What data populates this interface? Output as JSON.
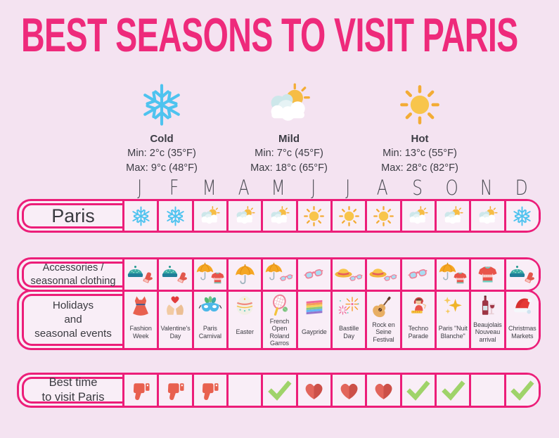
{
  "title": "BEST SEASONS TO VISIT PARIS",
  "colors": {
    "accent_pink": "#ec1e79",
    "title_pink": "#ee2a7b",
    "background": "#f4e3f1",
    "cell_background": "#f9eef7",
    "text_dark": "#3c3c44",
    "check_green": "#9fd36a",
    "heart_red": "#df5b51",
    "thumb_red": "#e8604f",
    "snowflake_blue": "#4ec3ef",
    "sun_yellow": "#f8c54b"
  },
  "legend": [
    {
      "icon": "snowflake-icon",
      "name": "Cold",
      "min": "Min: 2°c (35°F)",
      "max": "Max: 9°c (48°F)"
    },
    {
      "icon": "sun-behind-cloud-icon",
      "name": "Mild",
      "min": "Min: 7°c (45°F)",
      "max": "Max: 18°c (65°F)"
    },
    {
      "icon": "sun-icon",
      "name": "Hot",
      "min": "Min: 13°c (55°F)",
      "max": "Max: 28°c (82°F)"
    }
  ],
  "months": [
    "J",
    "F",
    "M",
    "A",
    "M",
    "J",
    "J",
    "A",
    "S",
    "O",
    "N",
    "D"
  ],
  "table": {
    "weather_row": {
      "label_lines": [
        "Paris"
      ],
      "cells": [
        {
          "icons": [
            "snowflake"
          ]
        },
        {
          "icons": [
            "snowflake"
          ]
        },
        {
          "icons": [
            "suncloud"
          ]
        },
        {
          "icons": [
            "suncloud"
          ]
        },
        {
          "icons": [
            "suncloud"
          ]
        },
        {
          "icons": [
            "sun"
          ]
        },
        {
          "icons": [
            "sun"
          ]
        },
        {
          "icons": [
            "sun"
          ]
        },
        {
          "icons": [
            "suncloud"
          ]
        },
        {
          "icons": [
            "suncloud"
          ]
        },
        {
          "icons": [
            "suncloud"
          ]
        },
        {
          "icons": [
            "snowflake"
          ]
        }
      ]
    },
    "accessories_row": {
      "label_lines": [
        "Accessories /",
        "seasonnal clothing"
      ],
      "cells": [
        {
          "icons": [
            "beanie",
            "mitten"
          ]
        },
        {
          "icons": [
            "beanie",
            "mitten"
          ]
        },
        {
          "icons": [
            "umbrella",
            "sweater"
          ]
        },
        {
          "icons": [
            "umbrella"
          ]
        },
        {
          "icons": [
            "umbrella",
            "sunglasses"
          ]
        },
        {
          "icons": [
            "sunglasses"
          ]
        },
        {
          "icons": [
            "sunhat",
            "sunglasses"
          ]
        },
        {
          "icons": [
            "sunhat",
            "sunglasses"
          ]
        },
        {
          "icons": [
            "sunglasses"
          ]
        },
        {
          "icons": [
            "umbrella",
            "sweater"
          ]
        },
        {
          "icons": [
            "sweater"
          ]
        },
        {
          "icons": [
            "beanie",
            "mitten"
          ]
        }
      ]
    },
    "holidays_row": {
      "label_lines": [
        "Holidays",
        "and",
        "seasonal events"
      ],
      "cells": [
        {
          "icons": [
            "dress"
          ],
          "caption": "Fashion Week"
        },
        {
          "icons": [
            "handsheart"
          ],
          "caption": "Valentine's Day"
        },
        {
          "icons": [
            "mask"
          ],
          "caption": "Paris Carnival"
        },
        {
          "icons": [
            "egg"
          ],
          "caption": "Easter"
        },
        {
          "icons": [
            "tennis"
          ],
          "caption": "French Open Roland Garros"
        },
        {
          "icons": [
            "rainbow"
          ],
          "caption": "Gaypride"
        },
        {
          "icons": [
            "fireworks"
          ],
          "caption": "Bastille Day"
        },
        {
          "icons": [
            "guitar"
          ],
          "caption": "Rock en Seine Festival"
        },
        {
          "icons": [
            "dj"
          ],
          "caption": "Techno Parade"
        },
        {
          "icons": [
            "sparkles"
          ],
          "caption": "Paris \"Nuit Blanche\""
        },
        {
          "icons": [
            "wine"
          ],
          "caption": "Beaujolais Nouveau arrival"
        },
        {
          "icons": [
            "santahat"
          ],
          "caption": "Christmas Markets"
        }
      ]
    },
    "best_time_row": {
      "label_lines": [
        "Best time",
        "to visit Paris"
      ],
      "cells": [
        {
          "icons": [
            "thumbdown"
          ]
        },
        {
          "icons": [
            "thumbdown"
          ]
        },
        {
          "icons": [
            "thumbdown"
          ]
        },
        {
          "icons": []
        },
        {
          "icons": [
            "check"
          ]
        },
        {
          "icons": [
            "heart"
          ]
        },
        {
          "icons": [
            "heart"
          ]
        },
        {
          "icons": [
            "heart"
          ]
        },
        {
          "icons": [
            "check"
          ]
        },
        {
          "icons": [
            "check"
          ]
        },
        {
          "icons": []
        },
        {
          "icons": [
            "check"
          ]
        }
      ]
    }
  }
}
